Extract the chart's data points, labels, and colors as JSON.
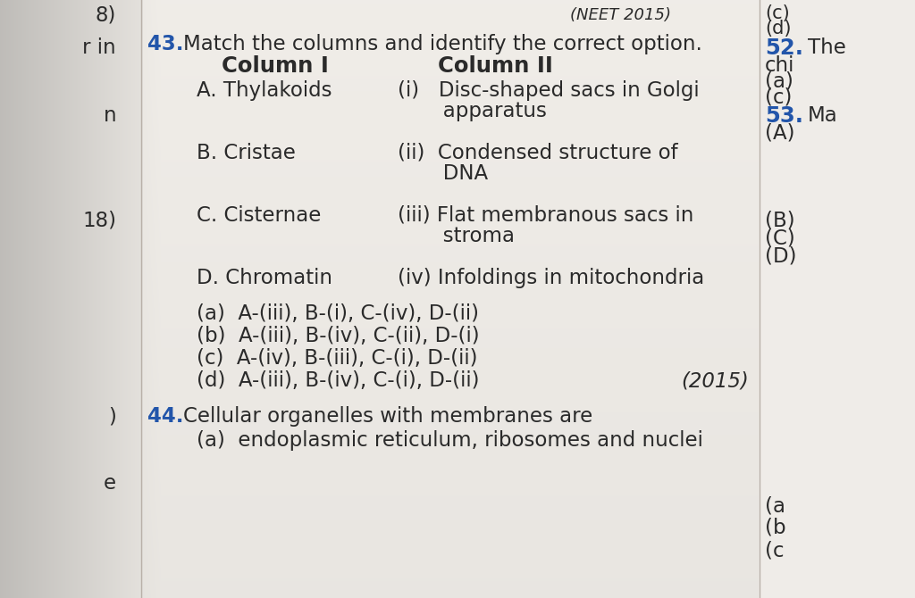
{
  "bg_main": "#f0ede8",
  "bg_left_strip": "#e8e4df",
  "bg_right_col": "#eeebe6",
  "text_color": "#2a2a2a",
  "blue_color": "#2255aa",
  "gray_text": "#444444",
  "line_color": "#aaaaaa",
  "top_header": "(NEET 2015)",
  "q43_num": "43.",
  "q43_title": "Match the columns and identify the correct option.",
  "col1_header": "Column I",
  "col2_header": "Column II",
  "col1_A": "A. Thylakoids",
  "col1_B": "B. Cristae",
  "col1_C": "C. Cisternae",
  "col1_D": "D. Chromatin",
  "col2_i_1": "(i)   Disc-shaped sacs in Golgi",
  "col2_i_2": "       apparatus",
  "col2_ii_1": "(ii)  Condensed structure of",
  "col2_ii_2": "       DNA",
  "col2_iii_1": "(iii) Flat membranous sacs in",
  "col2_iii_2": "       stroma",
  "col2_iv": "(iv) Infoldings in mitochondria",
  "opt_a": "(a)  A-(iii), B-(i), C-(iv), D-(ii)",
  "opt_b": "(b)  A-(iii), B-(iv), C-(ii), D-(i)",
  "opt_c": "(c)  A-(iv), B-(iii), C-(i), D-(ii)",
  "opt_d": "(d)  A-(iii), B-(iv), C-(i), D-(ii)",
  "year": "(2015)",
  "q44_num": "44.",
  "q44_title": "Cellular organelles with membranes are",
  "q44_a": "(a)  endoplasmic reticulum, ribosomes and nuclei",
  "left_8": "8)",
  "left_rin": "r in",
  "left_n": "n",
  "left_18": "18)",
  "left_paren": ")",
  "left_e": "e",
  "right_c": "(c)",
  "right_d": "(d)",
  "right_52": "52.",
  "right_The": "The",
  "right_chi": "chi",
  "right_a": "(a)",
  "right_c2": "(c)",
  "right_53": "53.",
  "right_Ma": "Ma",
  "right_A": "(A)",
  "right_B": "(B)",
  "right_C": "(C)",
  "right_D": "(D)",
  "right_a2": "(a",
  "right_b": "(b",
  "right_c3": "(c"
}
